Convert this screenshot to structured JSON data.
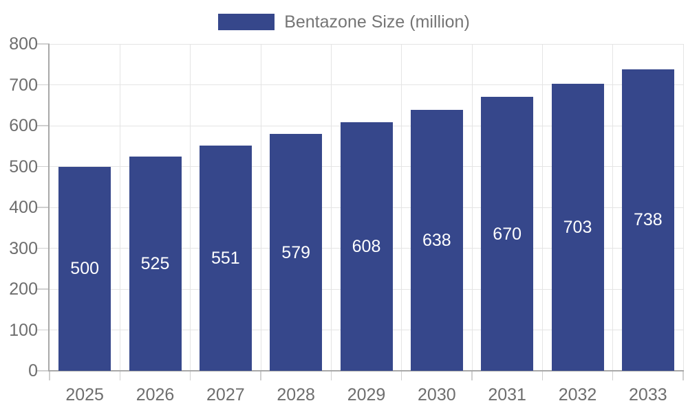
{
  "legend": {
    "label": "Bentazone Size (million)"
  },
  "chart_data": {
    "type": "bar",
    "title": "",
    "categories": [
      "2025",
      "2026",
      "2027",
      "2028",
      "2029",
      "2030",
      "2031",
      "2032",
      "2033"
    ],
    "series": [
      {
        "name": "Bentazone Size (million)",
        "values": [
          500,
          525,
          551,
          579,
          608,
          638,
          670,
          703,
          738
        ],
        "color": "#36478b"
      }
    ],
    "xlabel": "",
    "ylabel": "",
    "ylim": [
      0,
      800
    ],
    "y_ticks": [
      0,
      100,
      200,
      300,
      400,
      500,
      600,
      700,
      800
    ],
    "grid": true,
    "legend_position": "top-center",
    "value_labels": {
      "position": "inside-center",
      "color": "#ffffff"
    },
    "colors": {
      "bar": "#36478b",
      "grid": "#e4e4e4",
      "axis": "#a8a8a8",
      "tick": "#cfcfcf",
      "text": "#6e6e6e"
    }
  }
}
